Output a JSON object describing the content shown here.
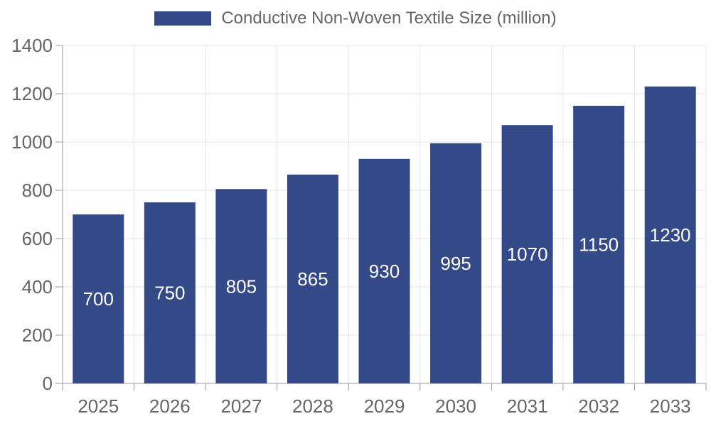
{
  "chart_data": {
    "type": "bar",
    "title": "Conductive Non-Woven Textile Size (million)",
    "legend": {
      "position": "top",
      "label": "Conductive Non-Woven Textile Size (million)"
    },
    "categories": [
      "2025",
      "2026",
      "2027",
      "2028",
      "2029",
      "2030",
      "2031",
      "2032",
      "2033"
    ],
    "values": [
      700,
      750,
      805,
      865,
      930,
      995,
      1070,
      1150,
      1230
    ],
    "xlabel": "",
    "ylabel": "",
    "ylim": [
      0,
      1400
    ],
    "ytick_step": 200,
    "ytick_labels": [
      "0",
      "200",
      "400",
      "600",
      "800",
      "1000",
      "1200",
      "1400"
    ],
    "grid": true,
    "colors": {
      "bar": "#344987",
      "bar_value_label": "#ffffff",
      "axis_text": "#666666",
      "gridline": "#e6e6e6",
      "axis_line": "#999999",
      "background": "#ffffff"
    }
  }
}
